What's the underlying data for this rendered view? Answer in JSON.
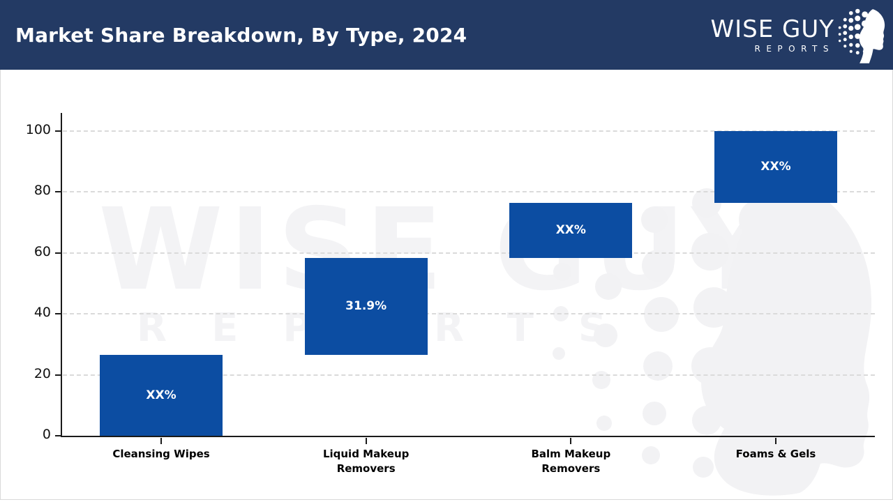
{
  "header": {
    "title": "Market Share Breakdown, By Type, 2024",
    "logo": {
      "name": "WISE GUY",
      "sub": "REPORTS"
    }
  },
  "watermark": {
    "name": "WISE GUY",
    "sub": "REPORTS"
  },
  "chart_data": {
    "type": "bar",
    "subtype": "waterfall",
    "title": "Market Share Breakdown, By Type, 2024",
    "unit": "percent",
    "categories": [
      [
        "Cleansing Wipes"
      ],
      [
        "Liquid Makeup",
        "Removers"
      ],
      [
        "Balm Makeup",
        "Removers"
      ],
      [
        "Foams & Gels"
      ]
    ],
    "segments": [
      {
        "category": "Cleansing Wipes",
        "start": 0,
        "end": 26.5,
        "value": 26.5,
        "label": "XX%"
      },
      {
        "category": "Liquid Makeup Removers",
        "start": 26.5,
        "end": 58.4,
        "value": 31.9,
        "label": "31.9%"
      },
      {
        "category": "Balm Makeup Removers",
        "start": 58.4,
        "end": 76.3,
        "value": 17.9,
        "label": "XX%"
      },
      {
        "category": "Foams & Gels",
        "start": 76.3,
        "end": 100,
        "value": 23.7,
        "label": "XX%"
      }
    ],
    "y_ticks": [
      0,
      20,
      40,
      60,
      80,
      100
    ],
    "ylim": [
      0,
      106
    ],
    "grid": "horizontal-dashed",
    "legend": "none",
    "colors": {
      "bar": "#0c4da2",
      "header": "#233a64",
      "grid": "#dadada",
      "axis": "#1a1a1a",
      "bar_label": "#ffffff",
      "watermark": "#f3f3f5"
    }
  }
}
